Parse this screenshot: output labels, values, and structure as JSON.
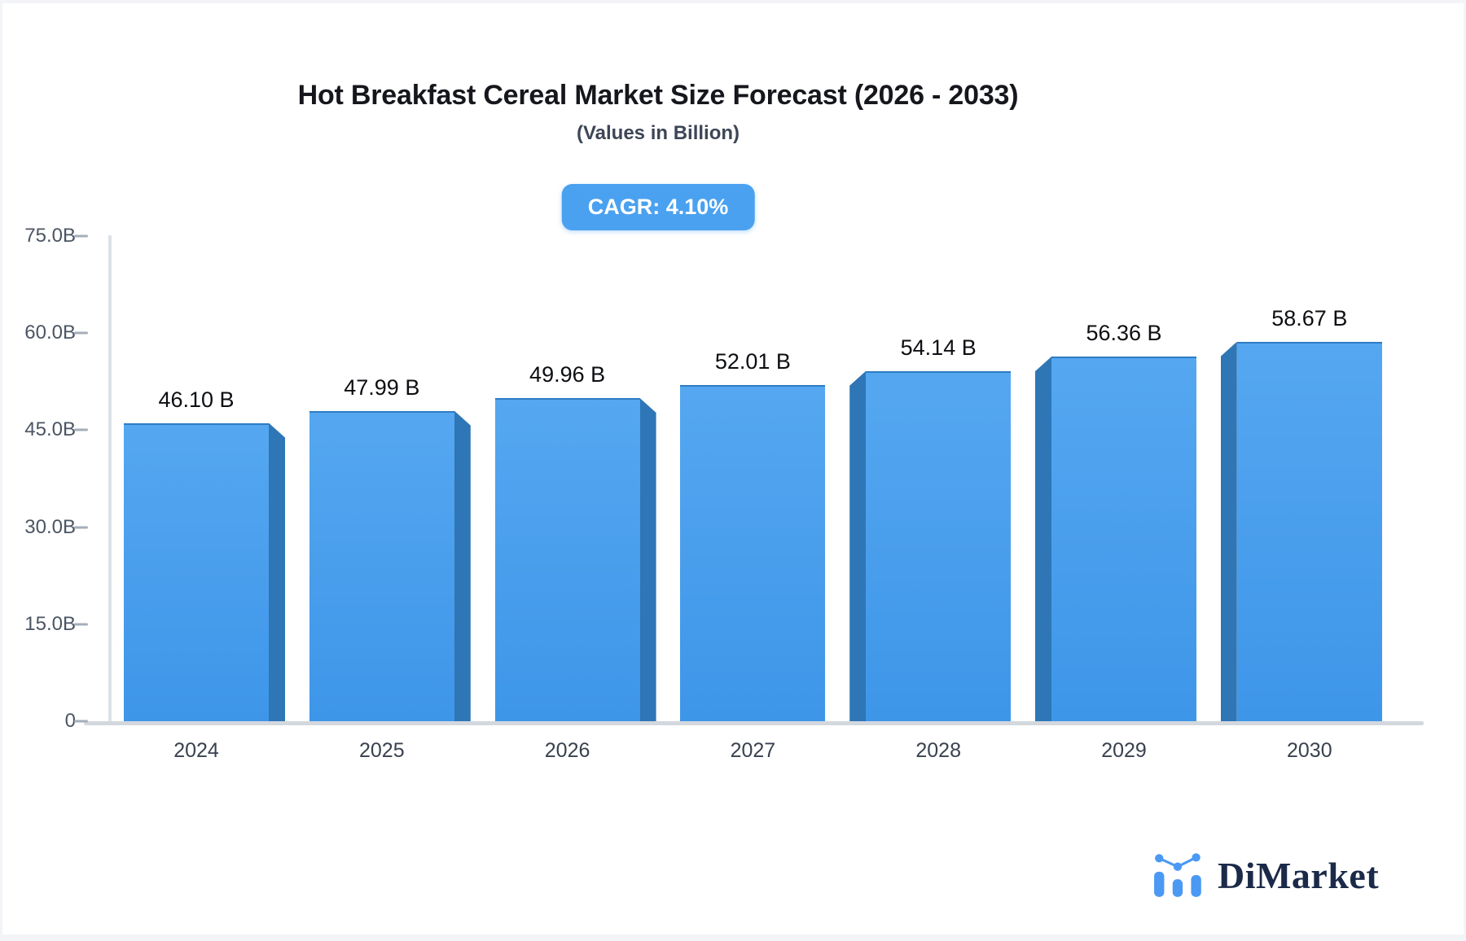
{
  "header": {
    "title": "Hot Breakfast Cereal Market Size Forecast (2026 - 2033)",
    "subtitle": "(Values in Billion)",
    "cagr_badge": "CAGR: 4.10%"
  },
  "chart_data": {
    "type": "bar",
    "title": "Hot Breakfast Cereal Market Size Forecast (2026 - 2033)",
    "subtitle": "(Values in Billion)",
    "annotation": "CAGR: 4.10%",
    "categories": [
      "2024",
      "2025",
      "2026",
      "2027",
      "2028",
      "2029",
      "2030"
    ],
    "values": [
      46.1,
      47.99,
      49.96,
      52.01,
      54.14,
      56.36,
      58.67
    ],
    "value_labels": [
      "46.10 B",
      "47.99 B",
      "49.96 B",
      "52.01 B",
      "54.14 B",
      "56.36 B",
      "58.67 B"
    ],
    "xlabel": "",
    "ylabel": "",
    "ylim": [
      0,
      75
    ],
    "y_ticks": [
      {
        "label": "75.0B",
        "value": 75
      },
      {
        "label": "60.0B",
        "value": 60
      },
      {
        "label": "45.0B",
        "value": 45
      },
      {
        "label": "30.0B",
        "value": 30
      },
      {
        "label": "15.0B",
        "value": 15
      },
      {
        "label": "0",
        "value": 0
      }
    ],
    "grid": false,
    "legend": false,
    "style": {
      "bar_face_top": "#55a7f0",
      "bar_face_bottom": "#3e96e9",
      "bar_top_edge": "#2e7cc3",
      "bar_side_3d": "#2e76b6",
      "badge_bg": "#4aa1f0",
      "axis_color": "#dde1e7"
    }
  },
  "branding": {
    "logo_text": "DiMarket",
    "logo_icon": "bar-chart-logo-icon",
    "logo_icon_color": "#4b99f3",
    "logo_text_color": "#1b2a49"
  }
}
